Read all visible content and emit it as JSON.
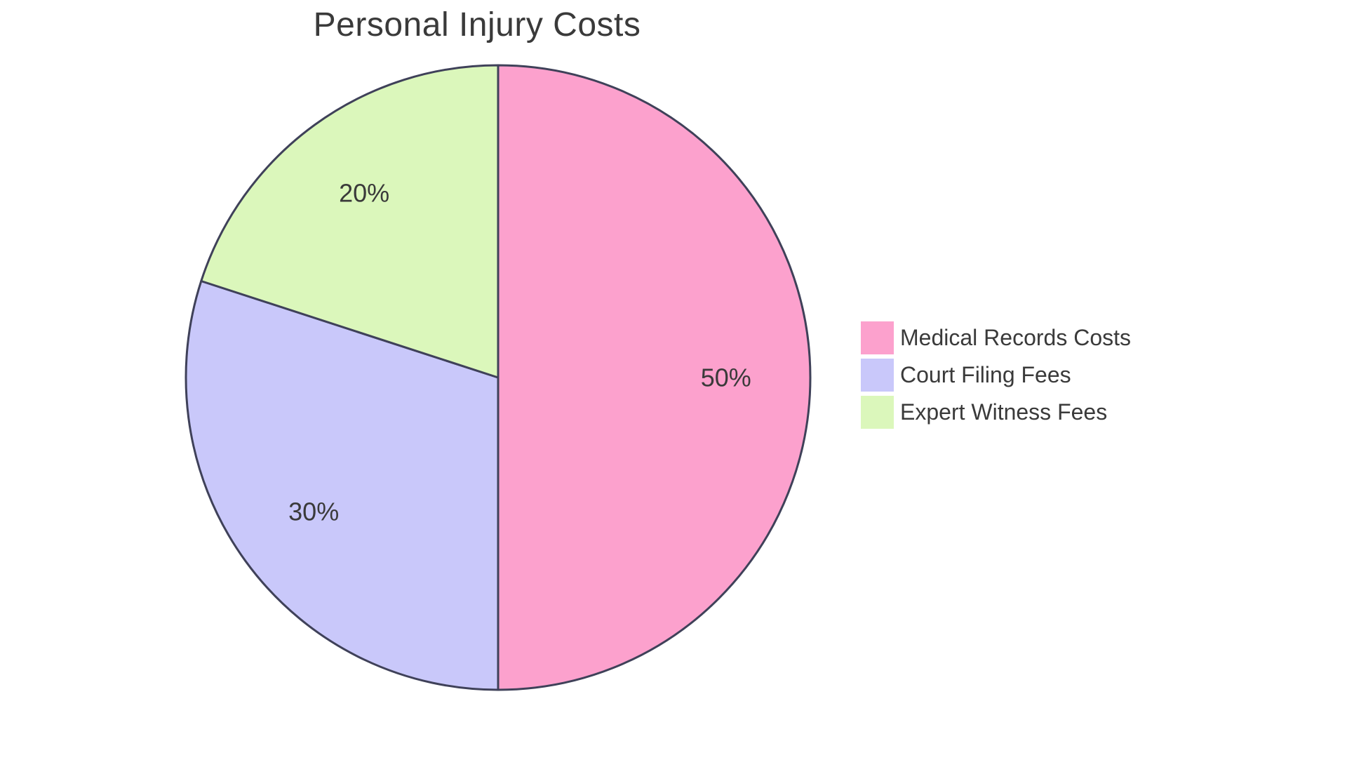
{
  "chart_data": {
    "type": "pie",
    "title": "Personal Injury Costs",
    "slices": [
      {
        "label": "Medical Records Costs",
        "value": 50,
        "percent_label": "50%",
        "color": "#FCA1CD"
      },
      {
        "label": "Court Filing Fees",
        "value": 30,
        "percent_label": "30%",
        "color": "#C9C8FA"
      },
      {
        "label": "Expert Witness Fees",
        "value": 20,
        "percent_label": "20%",
        "color": "#DBF7BB"
      }
    ],
    "start_angle_deg": 0,
    "direction": "clockwise",
    "legend_position": "right",
    "stroke_color": "#3F4159",
    "stroke_width": 3,
    "title_color": "#3A3A3A",
    "label_color": "#3A3A3A",
    "legend_text_color": "#3A3A3A",
    "background_color": "#FFFFFF"
  }
}
